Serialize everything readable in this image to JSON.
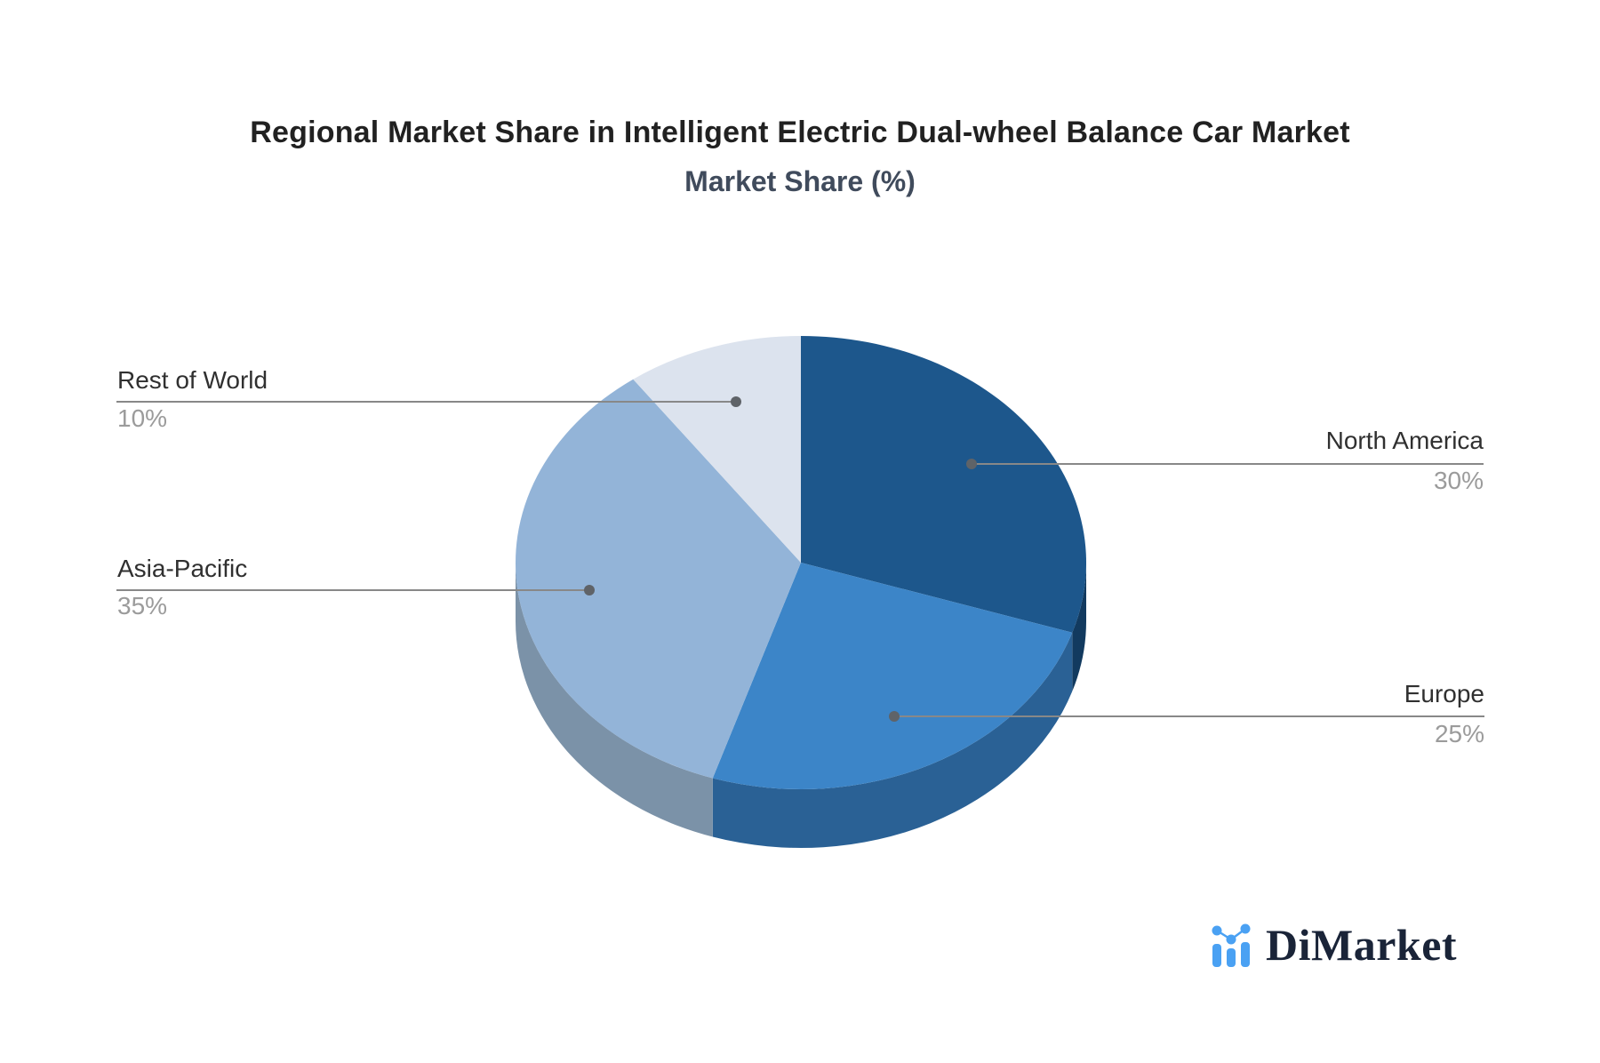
{
  "header": {
    "title": "Regional Market Share in Intelligent Electric Dual-wheel Balance Car Market",
    "subtitle": "Market Share (%)"
  },
  "chart_data": {
    "type": "pie",
    "style": "3d",
    "start_angle": "top",
    "direction": "clockwise",
    "title": "Regional Market Share in Intelligent Electric Dual-wheel Balance Car Market",
    "subtitle": "Market Share (%)",
    "unit": "%",
    "categories": [
      "North America",
      "Europe",
      "Asia-Pacific",
      "Rest of World"
    ],
    "values": [
      30,
      25,
      35,
      10
    ],
    "value_labels": [
      "30%",
      "25%",
      "35%",
      "10%"
    ],
    "colors": [
      "#1d578c",
      "#3c85c8",
      "#93b4d8",
      "#dce3ee"
    ],
    "wall_colors": [
      "#123a5f",
      "#2a6195",
      "#7b92a8",
      "#c5d0de"
    ],
    "legend_position": "callout-labels",
    "label_color": "#303030",
    "value_label_color": "#9b9b9b",
    "leader_line_color": "#888888",
    "leader_dot_color": "#5f6368"
  },
  "callouts": [
    {
      "label": "North America",
      "value_label": "30%",
      "side": "right"
    },
    {
      "label": "Europe",
      "value_label": "25%",
      "side": "right"
    },
    {
      "label": "Asia-Pacific",
      "value_label": "35%",
      "side": "left"
    },
    {
      "label": "Rest of World",
      "value_label": "10%",
      "side": "left"
    }
  ],
  "branding": {
    "logo_text": "DiMarket",
    "logo_icon": "bar-chart-icon",
    "logo_icon_color": "#4aa1f3",
    "logo_text_color": "#1a2438"
  }
}
